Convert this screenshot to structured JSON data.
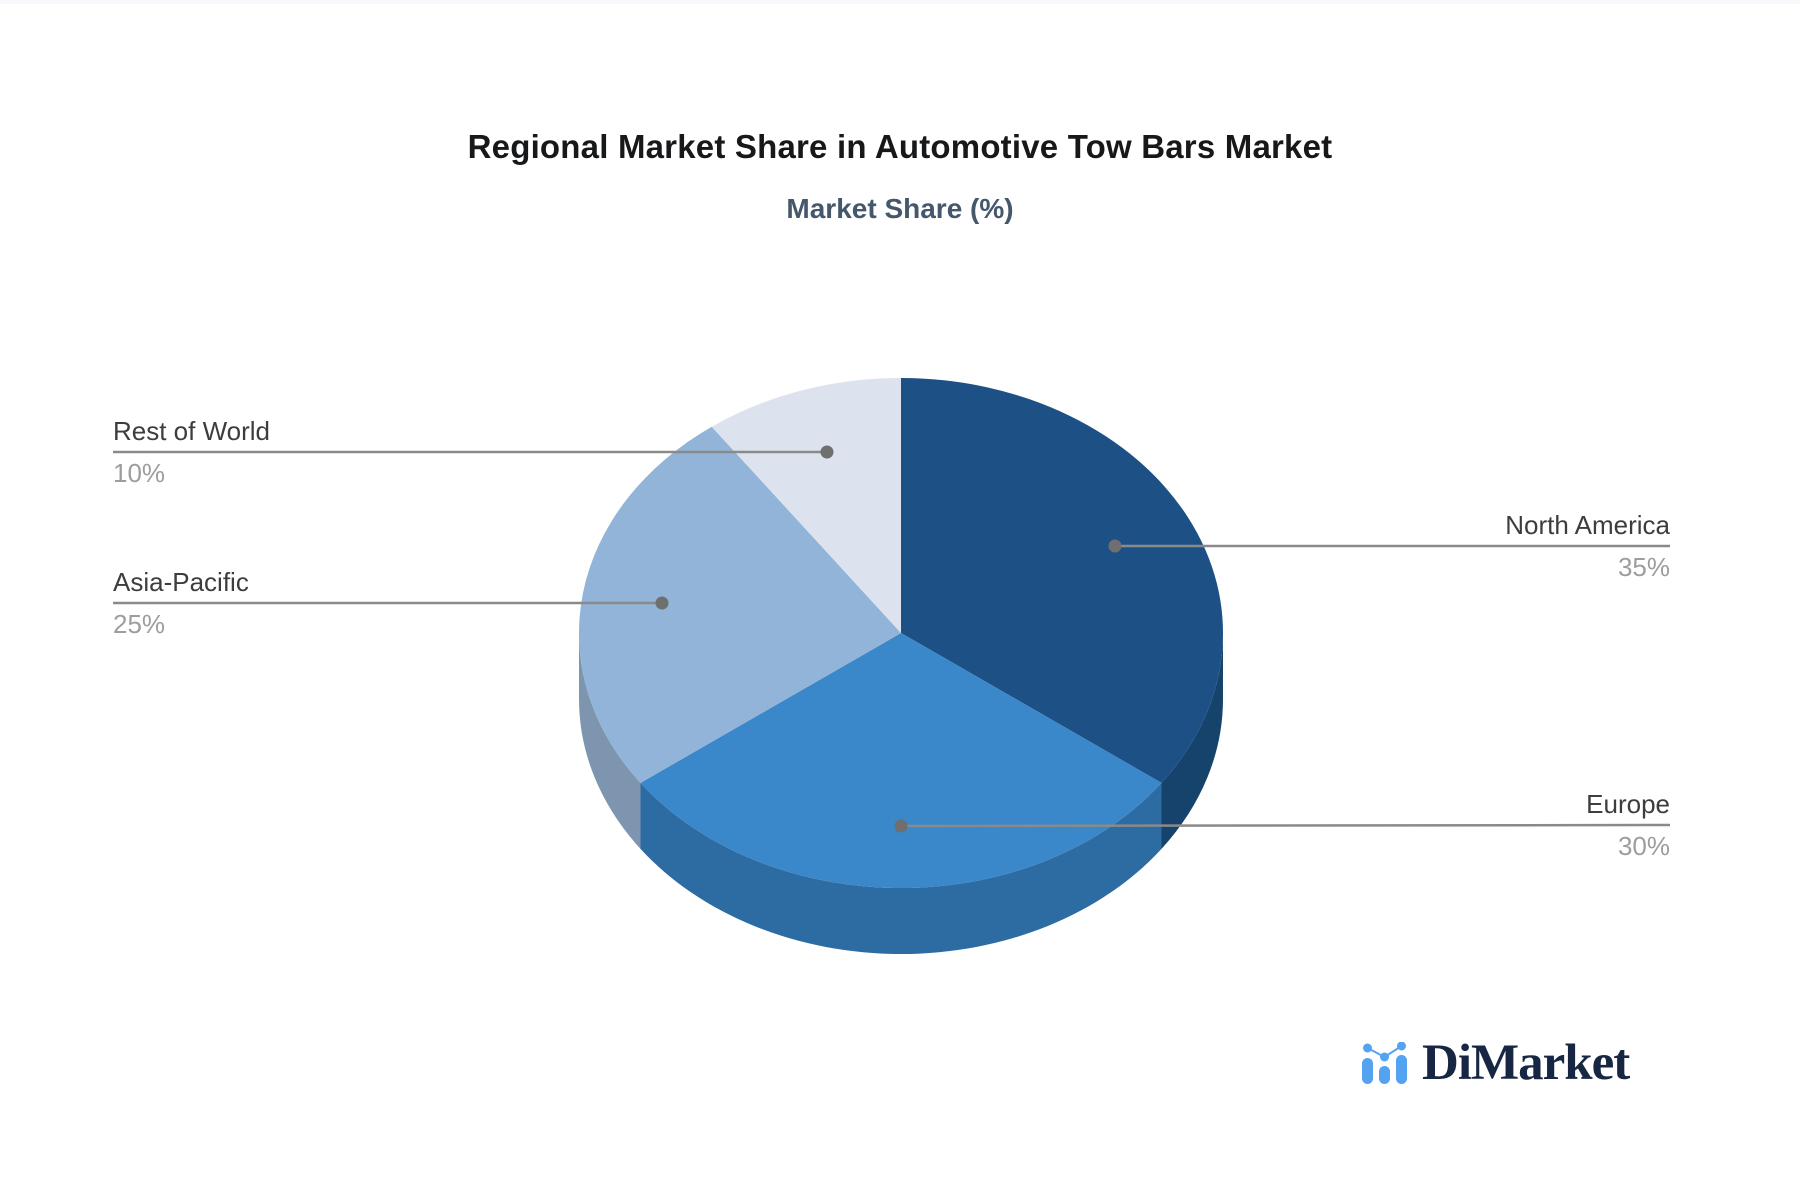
{
  "page": {
    "background": "#ffffff",
    "top_strip_color": "#f7f8fb"
  },
  "header": {
    "title": "Regional Market Share in Automotive Tow Bars Market",
    "subtitle": "Market Share (%)",
    "title_color": "#17181a",
    "subtitle_color": "#44576b"
  },
  "chart_data": {
    "type": "pie",
    "style": "3d",
    "title": "Regional Market Share in Automotive Tow Bars Market",
    "value_label": "Market Share (%)",
    "unit": "%",
    "start_angle_deg": 0,
    "direction": "clockwise",
    "slices": [
      {
        "name": "North America",
        "value": 35,
        "pct_label": "35%",
        "color": "#1d5186",
        "side_color": "#16436b",
        "label_side": "right"
      },
      {
        "name": "Europe",
        "value": 30,
        "pct_label": "30%",
        "color": "#3a87c9",
        "side_color": "#2d6ba3",
        "label_side": "right"
      },
      {
        "name": "Asia-Pacific",
        "value": 25,
        "pct_label": "25%",
        "color": "#92b4d9",
        "side_color": "#7e95af",
        "label_side": "left"
      },
      {
        "name": "Rest of World",
        "value": 10,
        "pct_label": "10%",
        "color": "#dce3ee",
        "side_color": "#c2cddd",
        "label_side": "left"
      }
    ],
    "label_text_color": "#3d3d3d",
    "pct_text_color": "#9d9d9d",
    "leader_line_color": "#8a8a8a",
    "legend": "none",
    "grid": "off"
  },
  "logo": {
    "text": "DiMarket",
    "text_color": "#172743",
    "icon": "bar-line-chart-icon",
    "icon_color": "#54a3f0"
  }
}
